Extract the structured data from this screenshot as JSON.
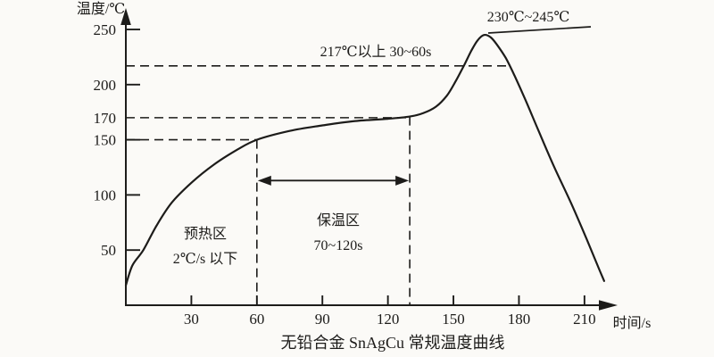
{
  "page": {
    "background": "#fbfaf7",
    "ink_color": "#1d1c1a"
  },
  "chart_data": {
    "type": "line",
    "title": "无铅合金 SnAgCu 常规温度曲线",
    "xlabel": "时间/s",
    "ylabel": "温度/℃",
    "x_ticks": [
      30,
      60,
      90,
      120,
      150,
      180,
      210
    ],
    "y_ticks": [
      250,
      200,
      170,
      150,
      100,
      50
    ],
    "y_ticks_with_marks": [
      250,
      200,
      150,
      100,
      50
    ],
    "xlim": [
      0,
      220
    ],
    "ylim": [
      0,
      265
    ],
    "grid": "off",
    "legend": "none",
    "series": [
      {
        "name": "reflow-temperature-profile",
        "points": [
          [
            0,
            18
          ],
          [
            3,
            36
          ],
          [
            8,
            50
          ],
          [
            14,
            72
          ],
          [
            21,
            93
          ],
          [
            30,
            111
          ],
          [
            40,
            127
          ],
          [
            51,
            141
          ],
          [
            60,
            150
          ],
          [
            75,
            158
          ],
          [
            90,
            163
          ],
          [
            105,
            167
          ],
          [
            120,
            169
          ],
          [
            130,
            171
          ],
          [
            136,
            174
          ],
          [
            142,
            180
          ],
          [
            147,
            190
          ],
          [
            151,
            203
          ],
          [
            155,
            218
          ],
          [
            158,
            230
          ],
          [
            161,
            240
          ],
          [
            164,
            245
          ],
          [
            167,
            243
          ],
          [
            170,
            236
          ],
          [
            174,
            224
          ],
          [
            178,
            208
          ],
          [
            183,
            186
          ],
          [
            189,
            158
          ],
          [
            196,
            126
          ],
          [
            204,
            92
          ],
          [
            211,
            60
          ],
          [
            216,
            36
          ],
          [
            219,
            22
          ]
        ]
      }
    ],
    "reference_lines": {
      "horizontal": [
        {
          "temp": 150,
          "t_end": 60
        },
        {
          "temp": 170,
          "t_end": 130
        },
        {
          "temp": 217,
          "t_end": 175
        }
      ],
      "vertical": [
        {
          "t": 60,
          "temp_top": 150
        },
        {
          "t": 130,
          "temp_top": 171
        }
      ]
    },
    "soak_arrow": {
      "t_start": 60,
      "t_end": 130,
      "temp": 113
    },
    "annotations": {
      "peak_range": "230℃~245℃",
      "above_217": "217℃以上 30~60s",
      "preheat_zone": [
        "预热区",
        "2℃/s 以下"
      ],
      "soak_zone": [
        "保温区",
        "70~120s"
      ]
    }
  }
}
